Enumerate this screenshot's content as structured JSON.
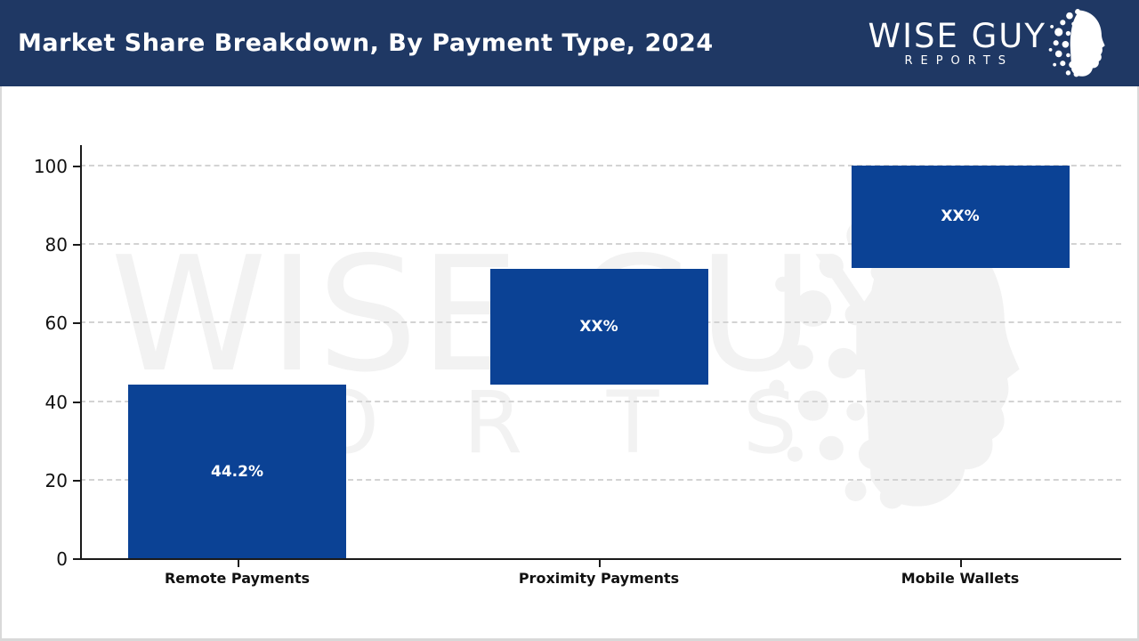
{
  "header": {
    "title": "Market Share Breakdown, By Payment Type, 2024",
    "bg_color": "#1F3864",
    "logo": {
      "line1": "WISE GUY",
      "line2": "REPORTS"
    }
  },
  "watermark": {
    "line1": "WISE GUY",
    "line2": "P O R T S"
  },
  "colors": {
    "header_bg": "#1F3864",
    "bar": "#0B4295",
    "bar_label": "#FFFFFF",
    "grid": "#D3D3D3",
    "axis": "#1A1A1A",
    "watermark": "#F2F2F2",
    "border": "#D9D9D9"
  },
  "chart_data": {
    "type": "bar",
    "variant": "floating-waterfall",
    "title": "Market Share Breakdown, By Payment Type, 2024",
    "categories": [
      "Remote Payments",
      "Proximity Payments",
      "Mobile Wallets"
    ],
    "bars": [
      {
        "category": "Remote Payments",
        "start": 0,
        "end": 44.2,
        "label": "44.2%"
      },
      {
        "category": "Proximity Payments",
        "start": 44.2,
        "end": 73.7,
        "label": "XX%"
      },
      {
        "category": "Mobile Wallets",
        "start": 74,
        "end": 100,
        "label": "XX%"
      }
    ],
    "ylim": [
      0,
      100
    ],
    "yticks": [
      0,
      20,
      40,
      60,
      80,
      100
    ],
    "ytick_labels": [
      "0",
      "20",
      "40",
      "60",
      "80",
      "100"
    ],
    "xlabel": "",
    "ylabel": "",
    "grid": "horizontal-dashed",
    "legend": "none"
  }
}
